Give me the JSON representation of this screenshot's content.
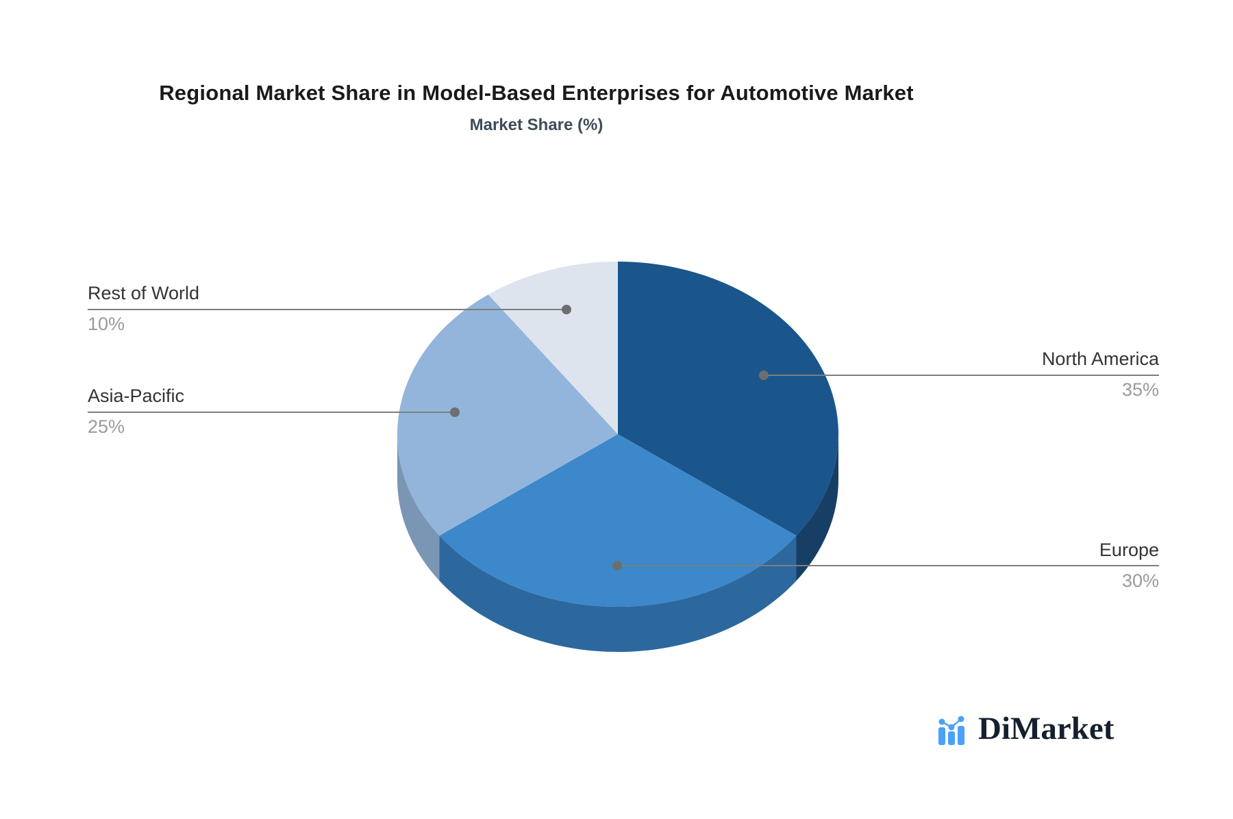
{
  "header": {
    "title": "Regional Market Share in Model-Based Enterprises for Automotive Market",
    "subtitle": "Market Share (%)"
  },
  "chart_data": {
    "type": "pie",
    "style": "3d-depth-pie",
    "title": "Regional Market Share in Model-Based Enterprises for Automotive Market",
    "subtitle": "Market Share (%)",
    "unit": "%",
    "start_angle_deg": 0,
    "direction": "clockwise",
    "categories": [
      "North America",
      "Europe",
      "Asia-Pacific",
      "Rest of World"
    ],
    "values": [
      35,
      30,
      25,
      10
    ],
    "colors": [
      "#1a568c",
      "#3c88cb",
      "#93b5db",
      "#dee4ee"
    ],
    "depth_colors": [
      "#173f66",
      "#2c689e",
      "#7b96b4",
      "#aebedc"
    ],
    "leader_line_color": "#7d7d7d",
    "leader_dot_color": "#6e6e6e",
    "callouts": [
      {
        "name": "North America",
        "value_label": "35%",
        "side": "right"
      },
      {
        "name": "Europe",
        "value_label": "30%",
        "side": "right"
      },
      {
        "name": "Asia-Pacific",
        "value_label": "25%",
        "side": "left"
      },
      {
        "name": "Rest of World",
        "value_label": "10%",
        "side": "left"
      }
    ]
  },
  "branding": {
    "logo_text": "DiMarket",
    "logo_icon": "bar-line-chart-icon",
    "logo_icon_color": "#4aa1f5",
    "logo_text_color": "#16202e"
  }
}
